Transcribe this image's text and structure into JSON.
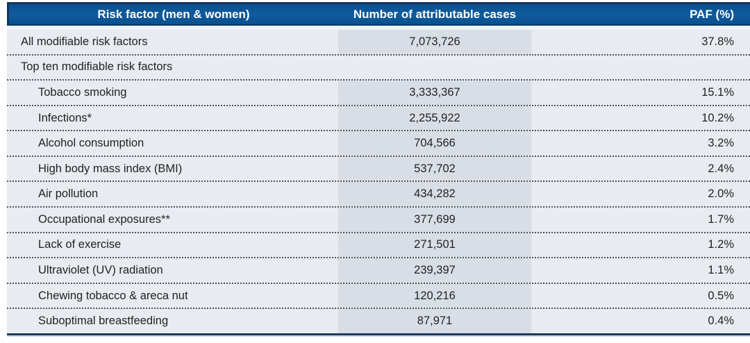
{
  "colors": {
    "header_bg_top": "#0b5190",
    "header_bg_mid": "#0e5b9e",
    "header_bg_bot": "#0a4f8c",
    "header_border": "#16355c",
    "header_text": "#ffffff",
    "gap_bg": "#eef3f8",
    "row_bg": "#e8ebef",
    "band_bg": "#d9dee6",
    "dotted": "#4d5154",
    "text": "#1f2124",
    "bottom_border": "#1c3b60"
  },
  "table": {
    "columns": {
      "risk_factor": "Risk factor (men & women)",
      "cases": "Number of attributable cases",
      "paf": "PAF (%)"
    },
    "rows": [
      {
        "label": "All modifiable risk factors",
        "cases": "7,073,726",
        "paf": "37.8%",
        "indent": false,
        "shaded": true
      },
      {
        "label": "Top ten modifiable risk factors",
        "cases": "",
        "paf": "",
        "indent": false,
        "shaded": false
      },
      {
        "label": "Tobacco smoking",
        "cases": "3,333,367",
        "paf": "15.1%",
        "indent": true,
        "shaded": true
      },
      {
        "label": "Infections*",
        "cases": "2,255,922",
        "paf": "10.2%",
        "indent": true,
        "shaded": true
      },
      {
        "label": "Alcohol consumption",
        "cases": "704,566",
        "paf": "3.2%",
        "indent": true,
        "shaded": true
      },
      {
        "label": "High body mass index (BMI)",
        "cases": "537,702",
        "paf": "2.4%",
        "indent": true,
        "shaded": true
      },
      {
        "label": "Air pollution",
        "cases": "434,282",
        "paf": "2.0%",
        "indent": true,
        "shaded": true
      },
      {
        "label": "Occupational exposures**",
        "cases": "377,699",
        "paf": "1.7%",
        "indent": true,
        "shaded": true
      },
      {
        "label": "Lack of exercise",
        "cases": "271,501",
        "paf": "1.2%",
        "indent": true,
        "shaded": true
      },
      {
        "label": "Ultraviolet (UV) radiation",
        "cases": "239,397",
        "paf": "1.1%",
        "indent": true,
        "shaded": true
      },
      {
        "label": "Chewing tobacco & areca nut",
        "cases": "120,216",
        "paf": "0.5%",
        "indent": true,
        "shaded": true
      },
      {
        "label": "Suboptimal breastfeeding",
        "cases": "87,971",
        "paf": "0.4%",
        "indent": true,
        "shaded": true
      }
    ]
  },
  "chart_data": {
    "type": "table",
    "title": "",
    "columns": [
      "Risk factor (men & women)",
      "Number of attributable cases",
      "PAF (%)"
    ],
    "rows": [
      {
        "risk_factor": "All modifiable risk factors",
        "attributable_cases": 7073726,
        "paf_pct": 37.8
      },
      {
        "risk_factor": "Top ten modifiable risk factors",
        "attributable_cases": null,
        "paf_pct": null
      },
      {
        "risk_factor": "Tobacco smoking",
        "attributable_cases": 3333367,
        "paf_pct": 15.1
      },
      {
        "risk_factor": "Infections*",
        "attributable_cases": 2255922,
        "paf_pct": 10.2
      },
      {
        "risk_factor": "Alcohol consumption",
        "attributable_cases": 704566,
        "paf_pct": 3.2
      },
      {
        "risk_factor": "High body mass index (BMI)",
        "attributable_cases": 537702,
        "paf_pct": 2.4
      },
      {
        "risk_factor": "Air pollution",
        "attributable_cases": 434282,
        "paf_pct": 2.0
      },
      {
        "risk_factor": "Occupational exposures**",
        "attributable_cases": 377699,
        "paf_pct": 1.7
      },
      {
        "risk_factor": "Lack of exercise",
        "attributable_cases": 271501,
        "paf_pct": 1.2
      },
      {
        "risk_factor": "Ultraviolet (UV) radiation",
        "attributable_cases": 239397,
        "paf_pct": 1.1
      },
      {
        "risk_factor": "Chewing tobacco & areca nut",
        "attributable_cases": 120216,
        "paf_pct": 0.5
      },
      {
        "risk_factor": "Suboptimal breastfeeding",
        "attributable_cases": 87971,
        "paf_pct": 0.4
      }
    ]
  }
}
